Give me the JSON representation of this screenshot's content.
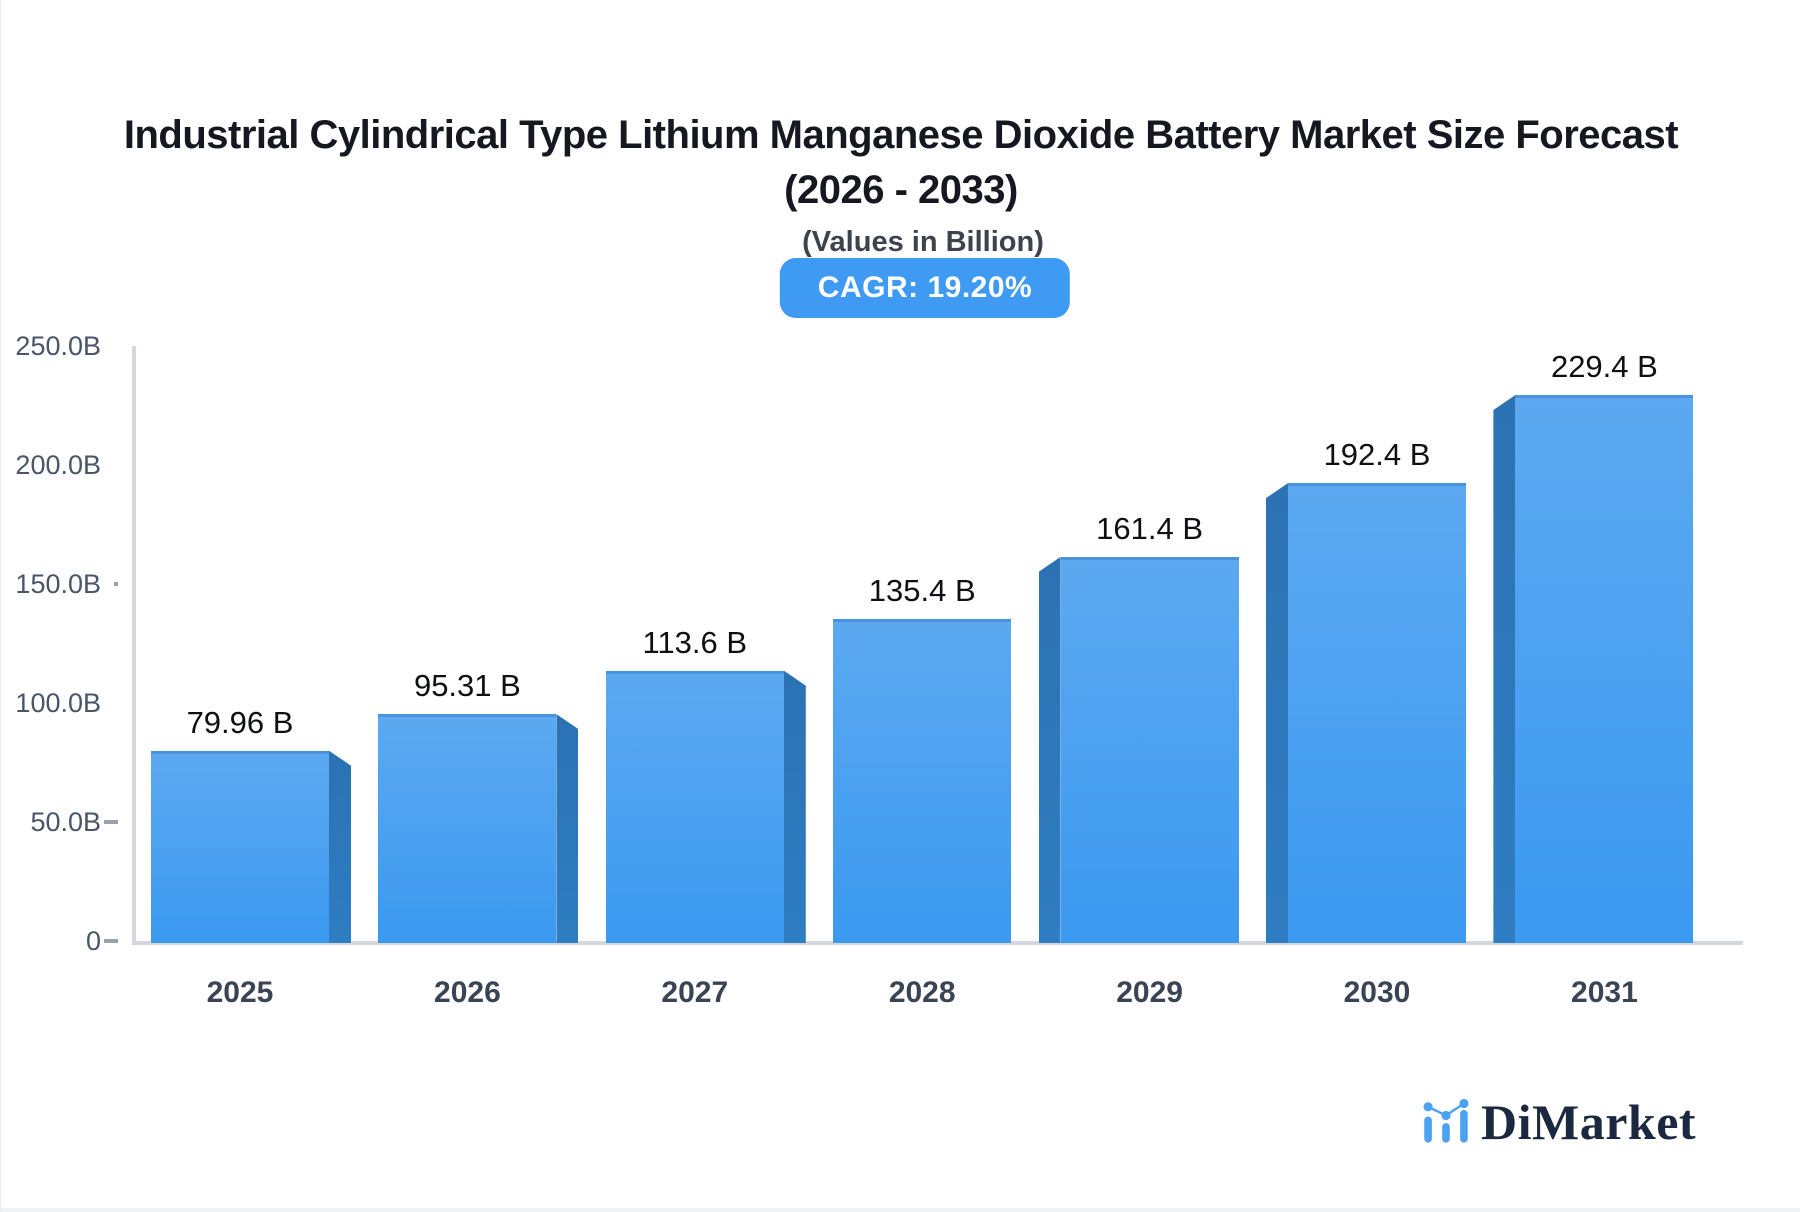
{
  "page": {
    "background": "#ffffff"
  },
  "header": {
    "title_line1": "Industrial Cylindrical Type Lithium Manganese Dioxide Battery Market Size Forecast",
    "title_line2": "(2026 - 2033)",
    "subtitle": "(Values in Billion)",
    "cagr_label": "CAGR: 19.20%"
  },
  "chart_data": {
    "type": "bar",
    "title": "Industrial Cylindrical Type Lithium Manganese Dioxide Battery Market Size Forecast (2026 - 2033)",
    "subtitle": "(Values in Billion)",
    "cagr_pct": 19.2,
    "categories": [
      "2025",
      "2026",
      "2027",
      "2028",
      "2029",
      "2030",
      "2031"
    ],
    "values": [
      79.96,
      95.31,
      113.6,
      135.4,
      161.4,
      192.4,
      229.4
    ],
    "value_labels": [
      "79.96 B",
      "95.31 B",
      "113.6 B",
      "135.4 B",
      "161.4 B",
      "192.4 B",
      "229.4 B"
    ],
    "unit": "Billion",
    "xlabel": "",
    "ylabel": "",
    "ylim": [
      0,
      250
    ],
    "y_ticks": [
      {
        "label": "250.0B",
        "value": 250
      },
      {
        "label": "200.0B",
        "value": 200
      },
      {
        "label": "150.0B",
        "value": 150
      },
      {
        "label": "100.0B",
        "value": 100
      },
      {
        "label": "50.0B",
        "value": 50
      },
      {
        "label": "0",
        "value": 0
      }
    ],
    "grid": false,
    "legend": "none",
    "bar_style": {
      "face_top": "#5CA9F1",
      "face_bottom": "#3B99F0",
      "face_edge": "#4A94DE",
      "side": "#2C74B5"
    }
  },
  "colors": {
    "accent_blue": "#3E9AF2",
    "badge_text": "#FFFFFF",
    "axis_line": "#D3D6DC",
    "tick": "#9AA1AC",
    "y_label": "#4A5568",
    "x_label": "#3B4454",
    "value_label": "#0E1013",
    "title": "#15181E",
    "subtitle": "#3D434D",
    "logo_icon": "#4BA2F0",
    "logo_text": "#1B2840"
  },
  "footer": {
    "brand": "DiMarket"
  }
}
